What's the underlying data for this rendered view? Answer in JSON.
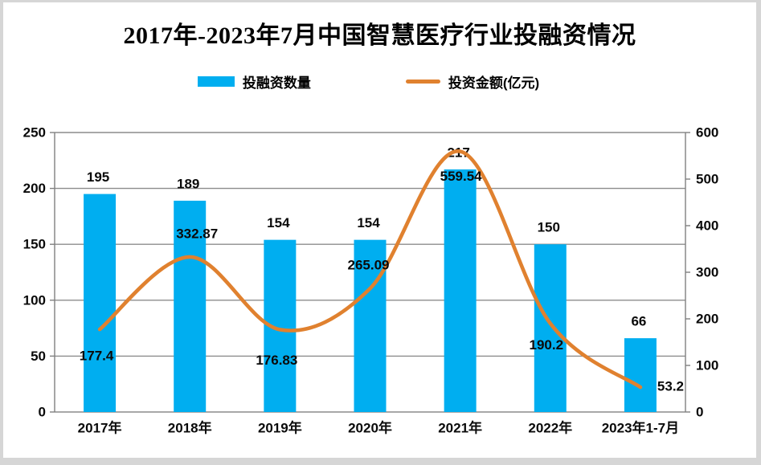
{
  "title": "2017年-2023年7月中国智慧医疗行业投融资情况",
  "legend": {
    "bar_label": "投融资数量",
    "line_label": "投资金额(亿元)"
  },
  "colors": {
    "bar": "#00AEF0",
    "line": "#E0812F",
    "grid": "#8C8C8C",
    "axis": "#808080",
    "text": "#0a0a0a",
    "frame": "#d6d6d6",
    "background": "#ffffff"
  },
  "chart_data": {
    "type": "bar",
    "subtype": "combo-bar-line",
    "title": "2017年-2023年7月中国智慧医疗行业投融资情况",
    "categories": [
      "2017年",
      "2018年",
      "2019年",
      "2020年",
      "2021年",
      "2022年",
      "2023年1-7月"
    ],
    "series": [
      {
        "name": "投融资数量",
        "type": "bar",
        "axis": "left",
        "color": "#00AEF0",
        "values": [
          195,
          189,
          154,
          154,
          217,
          150,
          66
        ],
        "labels": [
          "195",
          "189",
          "154",
          "154",
          "217",
          "150",
          "66"
        ]
      },
      {
        "name": "投资金额(亿元)",
        "type": "line",
        "smooth": true,
        "axis": "right",
        "color": "#E0812F",
        "values": [
          177.4,
          332.87,
          176.83,
          265.09,
          559.54,
          190.2,
          53.2
        ],
        "labels": [
          "177.4",
          "332.87",
          "176.83",
          "265.09",
          "559.54",
          "190.2",
          "53.2"
        ],
        "label_offsets": [
          [
            -4,
            33
          ],
          [
            9,
            -29
          ],
          [
            -4,
            38
          ],
          [
            -2,
            -29
          ],
          [
            1,
            31
          ],
          [
            -5,
            27
          ],
          [
            41,
            -1
          ]
        ]
      }
    ],
    "left_axis": {
      "min": 0,
      "max": 250,
      "step": 50,
      "ticks": [
        "250",
        "200",
        "150",
        "100",
        "50",
        "0"
      ]
    },
    "right_axis": {
      "min": 0,
      "max": 600,
      "step": 100,
      "ticks": [
        "600",
        "500",
        "400",
        "300",
        "200",
        "100",
        "0"
      ]
    },
    "grid": true,
    "legend_position": "top",
    "xlabel": "",
    "ylabel_left": "投融资数量",
    "ylabel_right": "投资金额(亿元)"
  }
}
